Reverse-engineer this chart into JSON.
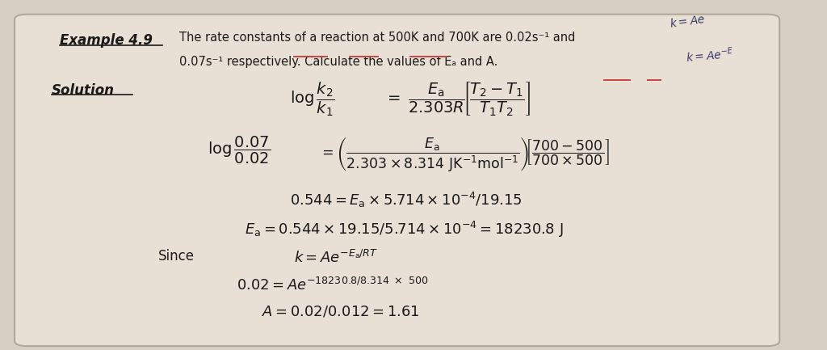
{
  "bg_color": "#d6cfc4",
  "card_color": "#e8e0d4",
  "text_color": "#1a1a1a",
  "handwriting_color": "#3a3a6a",
  "underline_color": "#cc4444",
  "figsize": [
    10.24,
    4.33
  ],
  "dpi": 100,
  "title": "Example 4.9",
  "problem_line1": "The rate constants of a reaction at 500K and 700K are 0.02s⁻¹ and",
  "problem_line2": "0.07s⁻¹ respectively. Calculate the values of Eₐ and A.",
  "solution_label": "Solution",
  "since_label": "Since"
}
